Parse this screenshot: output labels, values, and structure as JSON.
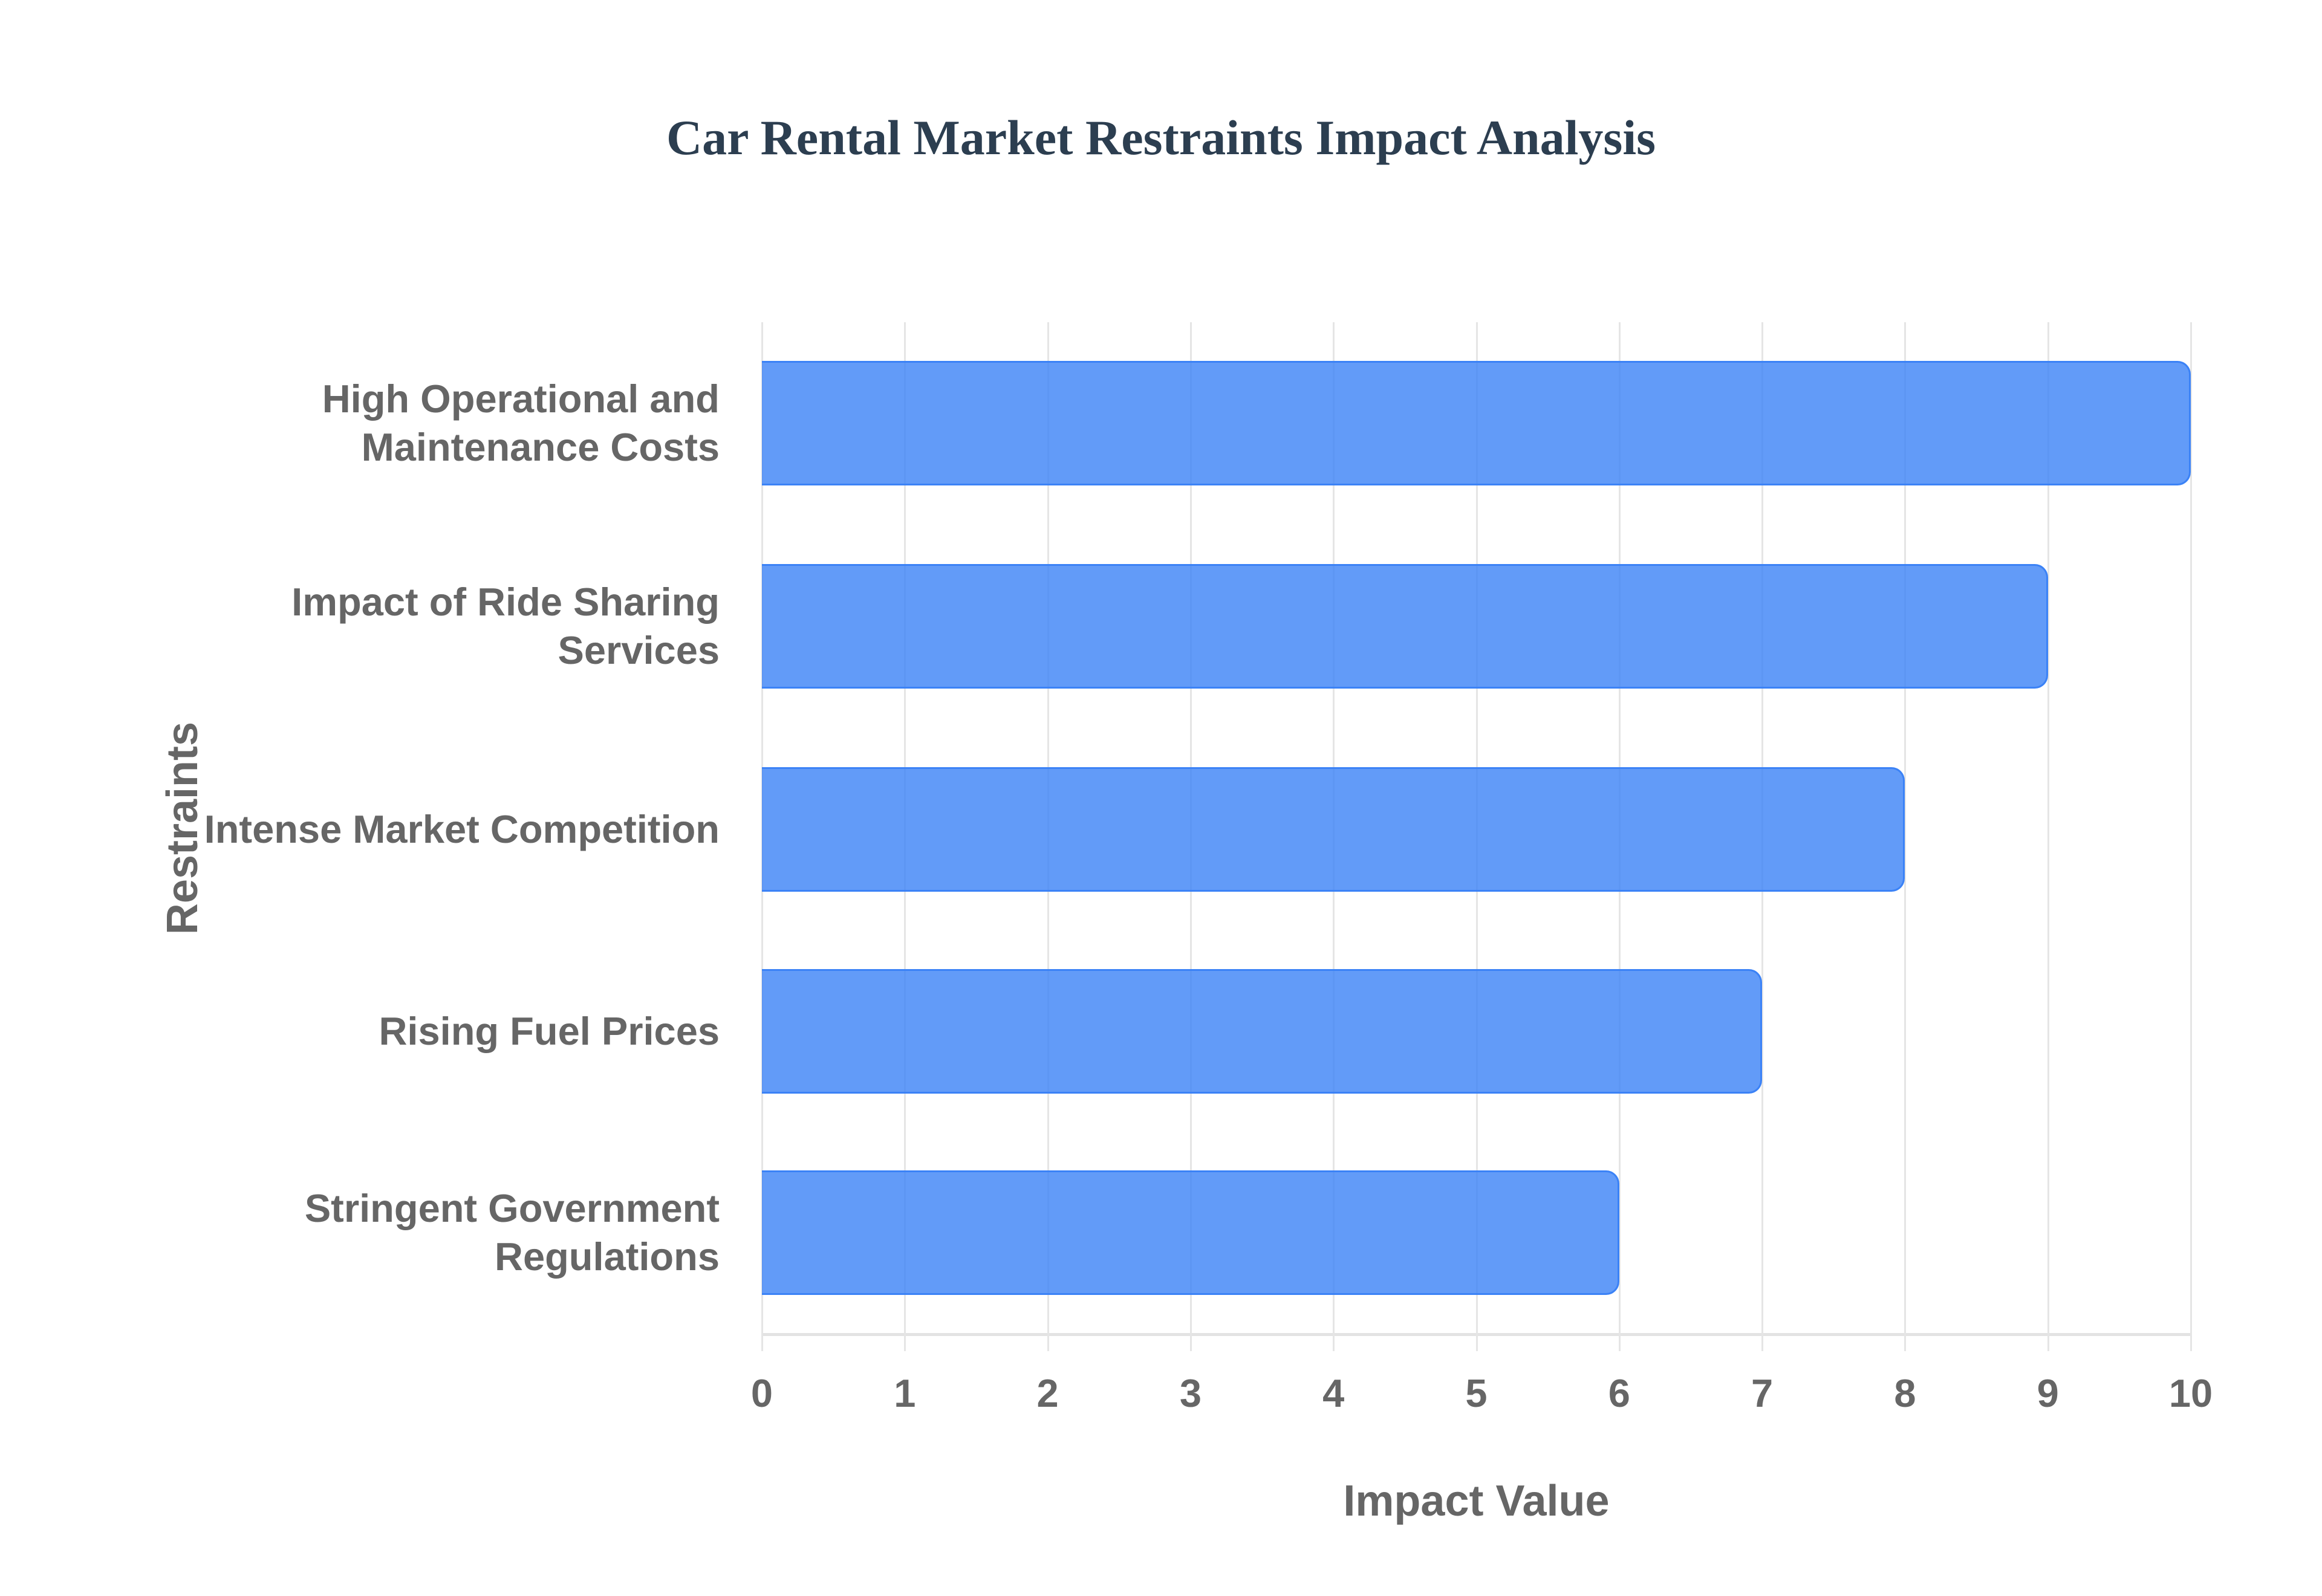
{
  "title": "Car Rental Market Restraints Impact Analysis",
  "axes": {
    "x_title": "Impact Value",
    "y_title": "Restraints",
    "x_ticks": [
      "0",
      "1",
      "2",
      "3",
      "4",
      "5",
      "6",
      "7",
      "8",
      "9",
      "10"
    ]
  },
  "categories": [
    {
      "line1": "High Operational and",
      "line2": "Maintenance Costs",
      "value": 10
    },
    {
      "line1": "Impact of Ride Sharing",
      "line2": "Services",
      "value": 9
    },
    {
      "line1": "Intense Market Competition",
      "line2": "",
      "value": 8
    },
    {
      "line1": "Rising Fuel Prices",
      "line2": "",
      "value": 7
    },
    {
      "line1": "Stringent Government",
      "line2": "Regulations",
      "value": 6
    }
  ],
  "colors": {
    "bar_fill": "#3b82f6cc",
    "bar_border": "#3b82f6",
    "title": "#2c3e50",
    "axis_text": "#666666",
    "grid": "#e5e5e5"
  },
  "chart_data": {
    "type": "bar",
    "orientation": "horizontal",
    "title": "Car Rental Market Restraints Impact Analysis",
    "categories": [
      "High Operational and Maintenance Costs",
      "Impact of Ride Sharing Services",
      "Intense Market Competition",
      "Rising Fuel Prices",
      "Stringent Government Regulations"
    ],
    "values": [
      10,
      9,
      8,
      7,
      6
    ],
    "xlabel": "Impact Value",
    "ylabel": "Restraints",
    "xlim": [
      0,
      10
    ],
    "x_ticks": [
      0,
      1,
      2,
      3,
      4,
      5,
      6,
      7,
      8,
      9,
      10
    ],
    "grid": true,
    "legend": "none"
  }
}
